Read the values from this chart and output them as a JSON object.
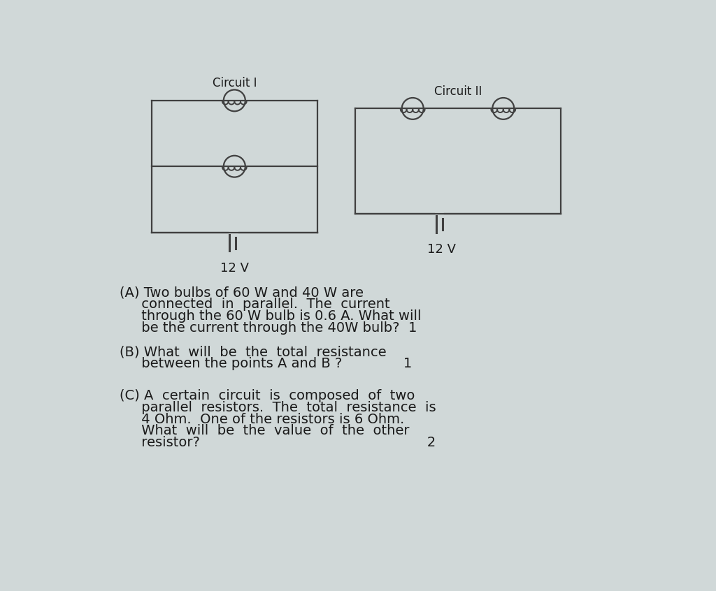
{
  "background_color": "#d0d8d8",
  "title_circuit1": "Circuit I",
  "title_circuit2": "Circuit II",
  "voltage_label": "12 V",
  "font_size_title": 12,
  "font_size_text": 14,
  "line_color": "#404040",
  "text_color": "#1a1a1a"
}
